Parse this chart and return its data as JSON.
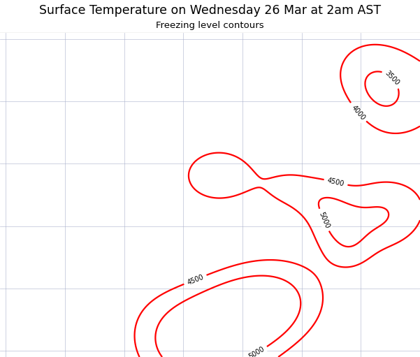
{
  "title": "Surface Temperature on Wednesday 26 Mar at 2am AST",
  "subtitle": "Freezing level contours",
  "title_fontsize": 12.5,
  "subtitle_fontsize": 9.5,
  "ocean_color": "#c8cde8",
  "white": "#ffffff",
  "title_sep_color": "#c8c8c0",
  "contour_color": "#ff0000",
  "grid_color": "#aab0cc",
  "fig_width": 6.01,
  "fig_height": 5.11,
  "dpi": 100,
  "contour_levels": [
    3500,
    4000,
    4500,
    5000
  ],
  "lon_min": -90.5,
  "lon_max": -55.0,
  "lat_min": 4.5,
  "lat_max": 30.5
}
